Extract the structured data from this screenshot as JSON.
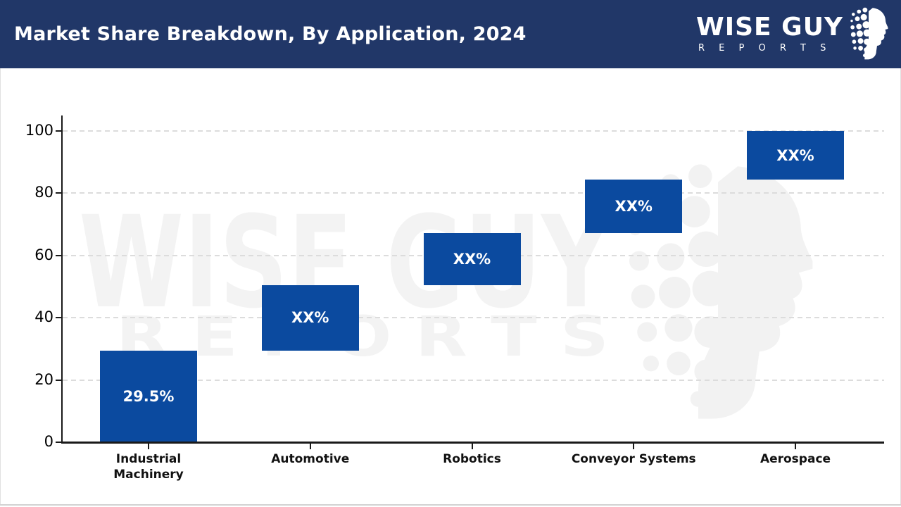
{
  "header": {
    "title": "Market Share Breakdown, By Application, 2024",
    "bg_color": "#213768",
    "logo": {
      "line1": "WISE GUY",
      "line2": "R E P O R T S"
    }
  },
  "watermark": {
    "line1": "WISE GUY",
    "line2": "R E P O R T S",
    "color": "#f2f2f2"
  },
  "chart_data": {
    "type": "bar",
    "subtype": "waterfall",
    "title": "Market Share Breakdown, By Application, 2024",
    "categories": [
      "Industrial Machinery",
      "Automotive",
      "Robotics",
      "Conveyor Systems",
      "Aerospace"
    ],
    "segments": [
      {
        "category": "Industrial Machinery",
        "start": 0,
        "end": 29.5,
        "label": "29.5%"
      },
      {
        "category": "Automotive",
        "start": 29.5,
        "end": 50.5,
        "label": "XX%"
      },
      {
        "category": "Robotics",
        "start": 50.5,
        "end": 67.3,
        "label": "XX%"
      },
      {
        "category": "Conveyor Systems",
        "start": 67.3,
        "end": 84.3,
        "label": "XX%"
      },
      {
        "category": "Aerospace",
        "start": 84.3,
        "end": 100,
        "label": "XX%"
      }
    ],
    "ylim": [
      0,
      100
    ],
    "yticks": [
      0,
      20,
      40,
      60,
      80,
      100
    ],
    "grid": "dashed-horizontal",
    "legend": "none",
    "bar_color": "#0b4a9f",
    "bar_label_color": "#ffffff",
    "axis_color": "#1a1a1a"
  }
}
